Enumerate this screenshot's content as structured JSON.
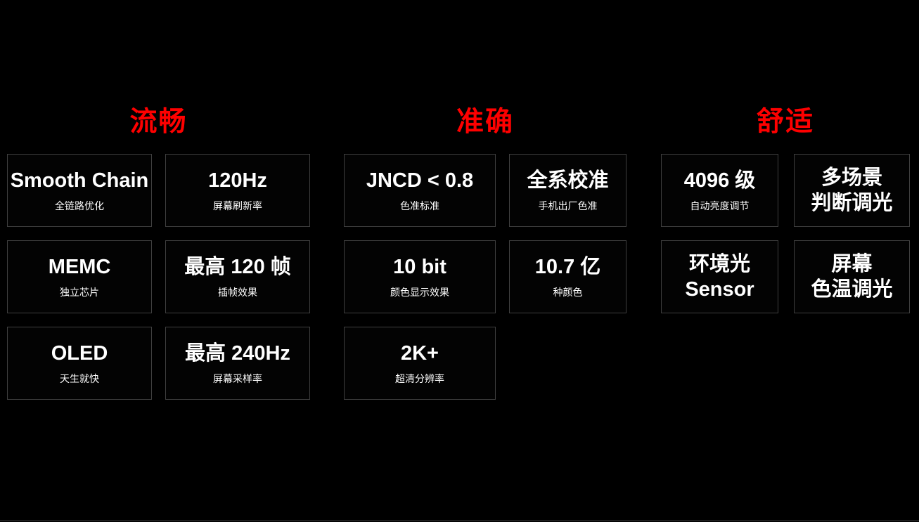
{
  "slide": {
    "background_color": "#000000",
    "accent_color": "#fe0000",
    "card_border_color": "#3f3f3f",
    "text_color": "#ffffff"
  },
  "sections": [
    {
      "title": "流畅",
      "cards": [
        {
          "value": "Smooth Chain",
          "label": "全链路优化"
        },
        {
          "value": "120Hz",
          "label": "屏幕刷新率"
        },
        {
          "value": "MEMC",
          "label": "独立芯片"
        },
        {
          "value": "最高 120 帧",
          "label": "插帧效果"
        },
        {
          "value": "OLED",
          "label": "天生就快"
        },
        {
          "value": "最高 240Hz",
          "label": "屏幕采样率"
        }
      ]
    },
    {
      "title": "准确",
      "cards": [
        {
          "value": "JNCD < 0.8",
          "label": "色准标准"
        },
        {
          "value": "全系校准",
          "label": "手机出厂色准"
        },
        {
          "value": "10 bit",
          "label": "颜色显示效果"
        },
        {
          "value": "10.7 亿",
          "label": "种颜色"
        },
        {
          "value": "2K+",
          "label": "超清分辨率"
        }
      ]
    },
    {
      "title": "舒适",
      "cards": [
        {
          "value": "4096 级",
          "label": "自动亮度调节"
        },
        {
          "value": "多场景\n判断调光"
        },
        {
          "value": "环境光\nSensor"
        },
        {
          "value": "屏幕\n色温调光"
        }
      ]
    }
  ]
}
